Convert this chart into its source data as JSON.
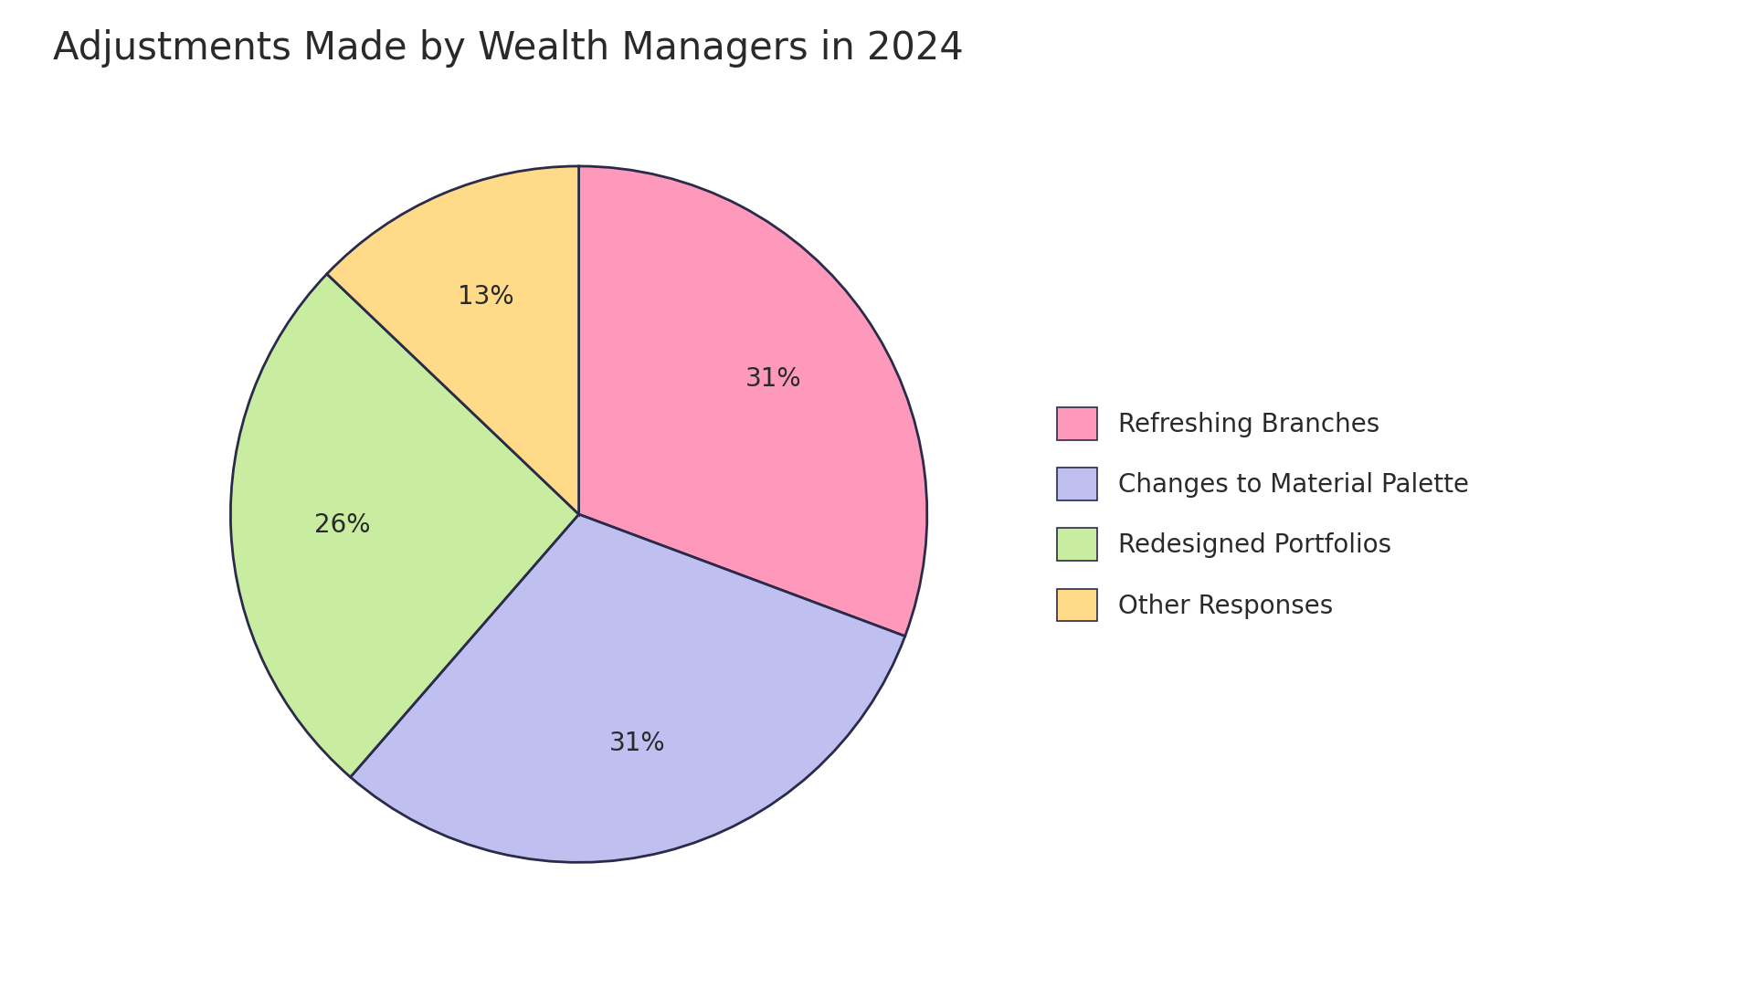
{
  "title": "Adjustments Made by Wealth Managers in 2024",
  "labels": [
    "Refreshing Branches",
    "Changes to Material Palette",
    "Redesigned Portfolios",
    "Other Responses"
  ],
  "values": [
    31,
    31,
    26,
    13
  ],
  "colors": [
    "#FF99BB",
    "#C0C0F0",
    "#C8EDA0",
    "#FFDA88"
  ],
  "edge_color": "#2A2A4A",
  "edge_width": 2.0,
  "autopct_fontsize": 20,
  "title_fontsize": 30,
  "legend_fontsize": 20,
  "background_color": "#FFFFFF",
  "text_color": "#2A2A2A",
  "start_angle": 90,
  "pct_distance": 0.68
}
